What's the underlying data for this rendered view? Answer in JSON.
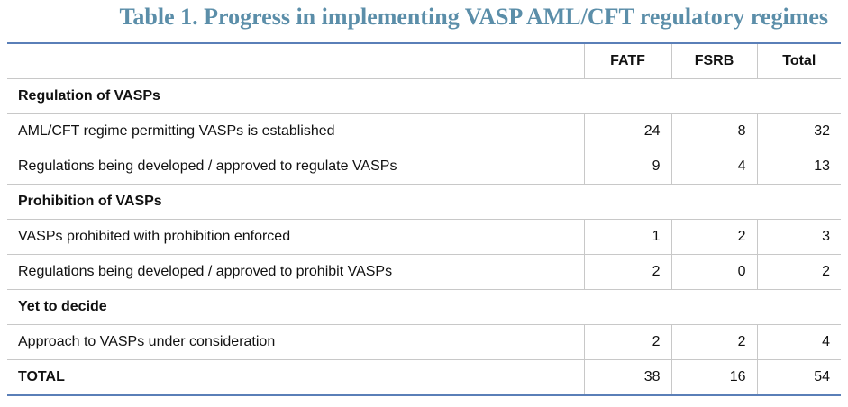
{
  "title": "Table 1. Progress in implementing VASP AML/CFT regulatory regimes",
  "table": {
    "header": [
      "FATF",
      "FSRB",
      "Total"
    ],
    "sections": [
      {
        "heading": "Regulation of VASPs",
        "rows": [
          {
            "label": "AML/CFT regime permitting VASPs is established",
            "values": [
              24,
              8,
              32
            ]
          },
          {
            "label": "Regulations being developed / approved to regulate VASPs",
            "values": [
              9,
              4,
              13
            ]
          }
        ]
      },
      {
        "heading": "Prohibition of VASPs",
        "rows": [
          {
            "label": "VASPs prohibited with prohibition enforced",
            "values": [
              1,
              2,
              3
            ]
          },
          {
            "label": "Regulations being developed / approved to prohibit VASPs",
            "values": [
              2,
              0,
              2
            ]
          }
        ]
      },
      {
        "heading": "Yet to decide",
        "rows": [
          {
            "label": "Approach to VASPs under consideration",
            "values": [
              2,
              2,
              4
            ]
          }
        ]
      }
    ],
    "total": {
      "label": "TOTAL",
      "values": [
        38,
        16,
        54
      ]
    }
  }
}
